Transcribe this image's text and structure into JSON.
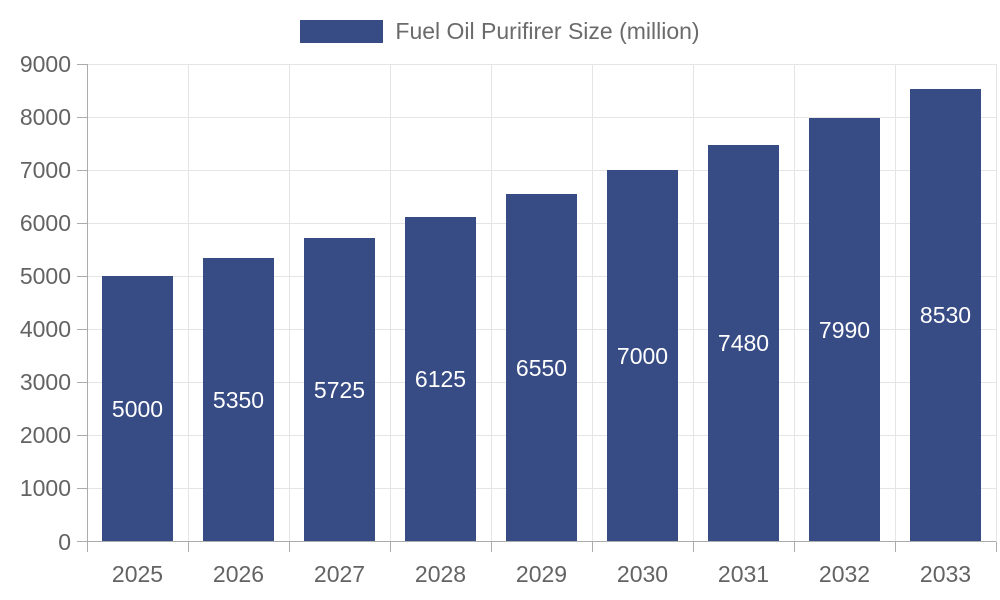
{
  "chart_data": {
    "type": "bar",
    "title": "",
    "legend_label": "Fuel Oil Purifirer Size (million)",
    "legend_position": "top",
    "categories": [
      "2025",
      "2026",
      "2027",
      "2028",
      "2029",
      "2030",
      "2031",
      "2032",
      "2033"
    ],
    "series": [
      {
        "name": "Fuel Oil Purifirer Size (million)",
        "values": [
          5000,
          5350,
          5725,
          6125,
          6550,
          7000,
          7480,
          7990,
          8530
        ]
      }
    ],
    "value_labels": [
      "5000",
      "5350",
      "5725",
      "6125",
      "6550",
      "7000",
      "7480",
      "7990",
      "8530"
    ],
    "xlabel": "",
    "ylabel": "",
    "ylim": [
      0,
      9000
    ],
    "yticks": [
      0,
      1000,
      2000,
      3000,
      4000,
      5000,
      6000,
      7000,
      8000,
      9000
    ],
    "grid": true,
    "colors": {
      "bar": "#374B85",
      "value_label": "#FFFFFF",
      "gridline": "#E5E5E5",
      "axis_line": "#ABABAB",
      "tick_label": "#636363",
      "legend_text": "#6B6B6B",
      "background": "#FFFFFF"
    }
  }
}
